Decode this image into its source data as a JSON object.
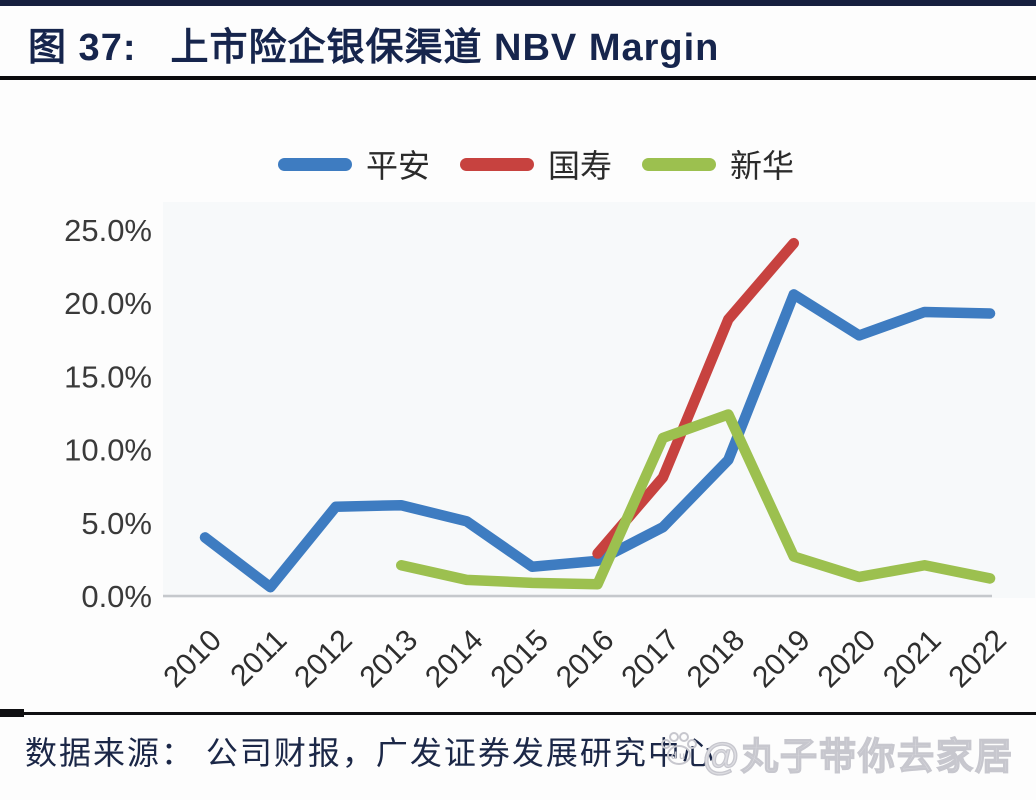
{
  "header": {
    "figure_label": "图 37:",
    "title": "上市险企银保渠道 NBV Margin"
  },
  "chart_data": {
    "type": "line",
    "title": "上市险企银保渠道 NBV Margin",
    "x": [
      "2010",
      "2011",
      "2012",
      "2013",
      "2014",
      "2015",
      "2016",
      "2017",
      "2018",
      "2019",
      "2020",
      "2021",
      "2022"
    ],
    "series": [
      {
        "name": "平安",
        "color": "#3e7cc1",
        "values": [
          4.0,
          0.6,
          6.1,
          6.2,
          5.1,
          2.0,
          2.4,
          4.7,
          9.3,
          20.6,
          17.8,
          19.4,
          19.3
        ]
      },
      {
        "name": "国寿",
        "color": "#c7423f",
        "values": [
          null,
          null,
          null,
          null,
          null,
          null,
          2.9,
          8.1,
          18.9,
          24.1,
          null,
          null,
          null
        ]
      },
      {
        "name": "新华",
        "color": "#9cc04f",
        "values": [
          null,
          null,
          null,
          2.1,
          1.1,
          0.9,
          0.8,
          10.8,
          12.4,
          2.7,
          1.3,
          2.1,
          1.2
        ]
      }
    ],
    "y_ticks": [
      {
        "label": "25.0%",
        "value": 25
      },
      {
        "label": "20.0%",
        "value": 20
      },
      {
        "label": "15.0%",
        "value": 15
      },
      {
        "label": "10.0%",
        "value": 10
      },
      {
        "label": "5.0%",
        "value": 5
      },
      {
        "label": "0.0%",
        "value": 0
      }
    ],
    "ylim": [
      0,
      25
    ],
    "unit": "%",
    "grid": false,
    "legend_position": "top",
    "x_label_rotation_deg": 45
  },
  "footer": {
    "source_label": "数据来源：  公司财报，广发证券发展研究中心",
    "watermark_text": "@丸子带你去家居",
    "watermark_icon": "baidu-paw-du-icon"
  }
}
